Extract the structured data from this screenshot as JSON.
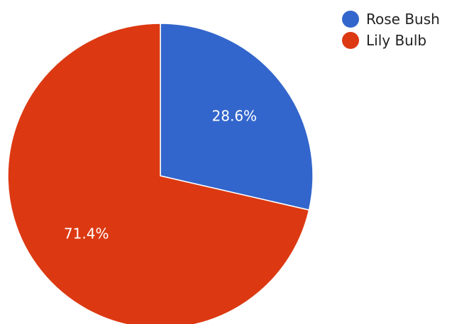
{
  "chart_data": {
    "type": "pie",
    "title": "",
    "slices": [
      {
        "label": "Rose Bush",
        "value": 28.6,
        "display": "28.6%",
        "color": "#3366cc"
      },
      {
        "label": "Lily Bulb",
        "value": 71.4,
        "display": "71.4%",
        "color": "#dc3912"
      }
    ],
    "legend_position": "top-right",
    "start_angle": "12 o'clock",
    "direction": "clockwise"
  }
}
